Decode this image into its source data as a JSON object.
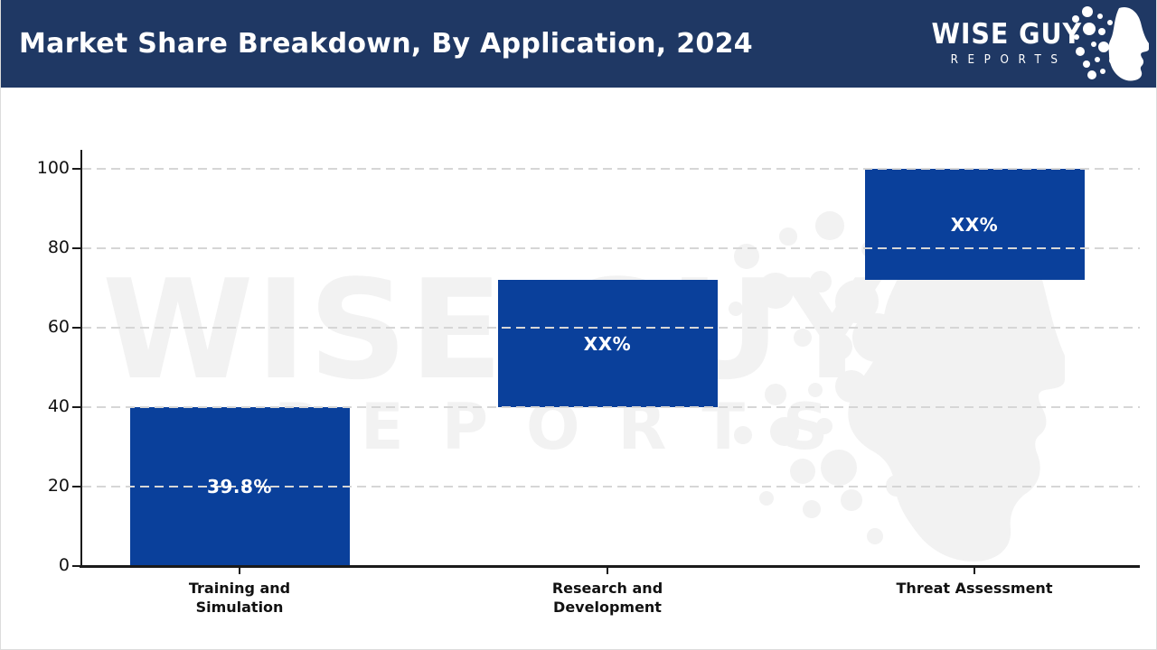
{
  "header": {
    "title": "Market Share Breakdown, By Application, 2024",
    "logo": {
      "wordmark": "WISE GUY",
      "subtitle": "REPORTS"
    }
  },
  "watermark": {
    "wordmark": "WISE GUY",
    "subtitle": "REPORTS"
  },
  "chart_data": {
    "type": "bar",
    "subtype": "floating-segment waterfall (segments stack from 0 to 100)",
    "title": "Market Share Breakdown, By Application, 2024",
    "categories": [
      "Training and Simulation",
      "Research and Development",
      "Threat Assessment"
    ],
    "category_lines": [
      [
        "Training and",
        "Simulation"
      ],
      [
        "Research and",
        "Development"
      ],
      [
        "Threat Assessment"
      ]
    ],
    "bars": [
      {
        "category": "Training and Simulation",
        "start": 0,
        "end": 40,
        "value_label": "39.8%"
      },
      {
        "category": "Research and Development",
        "start": 40,
        "end": 72,
        "value_label": "XX%"
      },
      {
        "category": "Threat Assessment",
        "start": 72,
        "end": 100,
        "value_label": "XX%"
      }
    ],
    "xlabel": "",
    "ylabel": "",
    "ylim": [
      0,
      100
    ],
    "yticks": [
      0,
      20,
      40,
      60,
      80,
      100
    ],
    "grid": "horizontal dashed, drawn above bars",
    "legend": "none",
    "colors": {
      "bar": "#0a409b",
      "header_bg": "#1f3864",
      "grid": "#d6d6d6",
      "axis": "#1a1a1a",
      "bar_label_text": "#ffffff",
      "watermark": "#f2f2f2"
    }
  }
}
